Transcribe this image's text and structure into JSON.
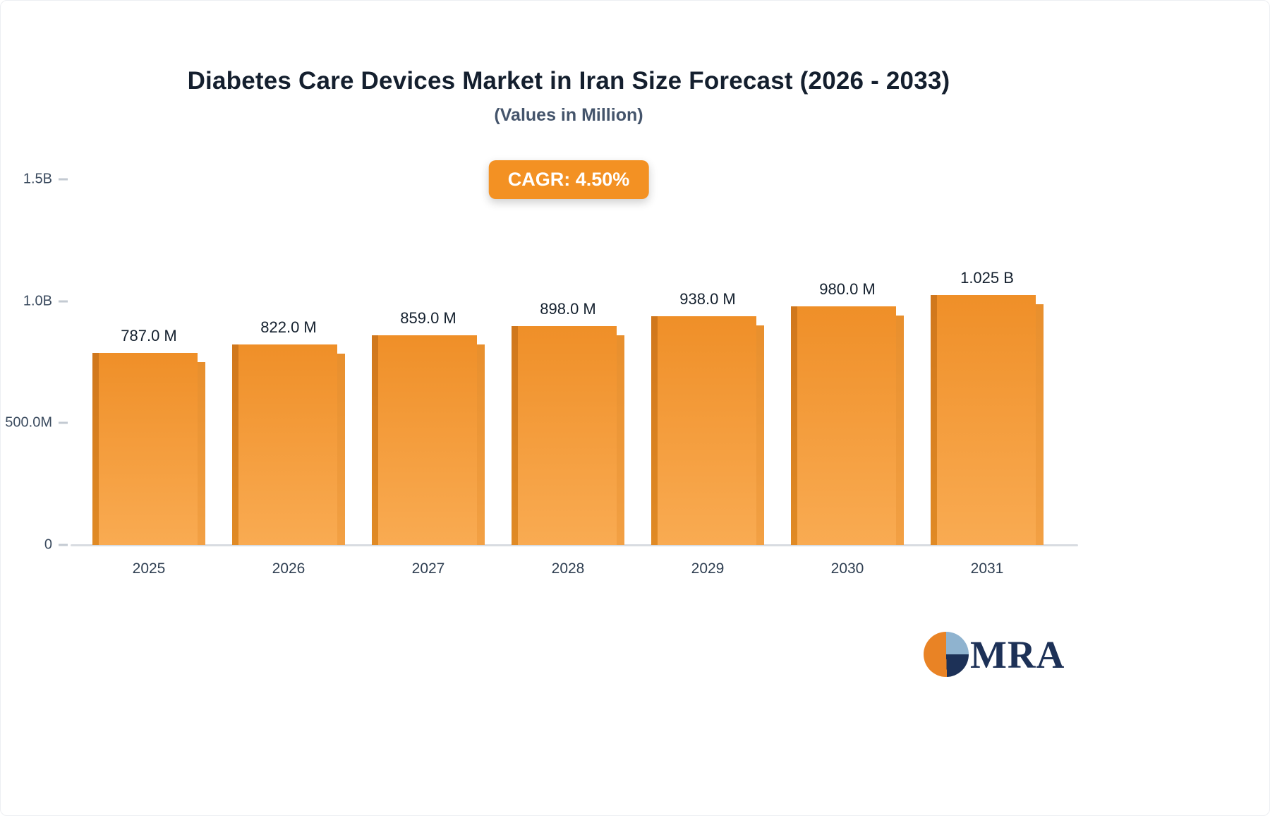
{
  "title": "Diabetes Care Devices Market in Iran Size Forecast (2026 - 2033)",
  "subtitle": "(Values in Million)",
  "cagr_label": "CAGR: 4.50%",
  "logo_text": "MRA",
  "colors": {
    "badge": "#f39123",
    "bar_top": "#ef8f28",
    "bar_bottom": "#f9ab52",
    "title": "#141f2e"
  },
  "chart_data": {
    "type": "bar",
    "title": "Diabetes Care Devices Market in Iran Size Forecast (2026 - 2033)",
    "subtitle": "(Values in Million)",
    "cagr": "4.50%",
    "categories": [
      "2025",
      "2026",
      "2027",
      "2028",
      "2029",
      "2030",
      "2031"
    ],
    "values": [
      787,
      822,
      859,
      898,
      938,
      980,
      1025
    ],
    "labels": [
      "787.0 M",
      "822.0 M",
      "859.0 M",
      "898.0 M",
      "938.0 M",
      "980.0 M",
      "1.025 B"
    ],
    "unit_label": "Million",
    "xlabel": "",
    "ylabel": "",
    "ylim": [
      0,
      1500
    ],
    "grid": false,
    "legend": false,
    "yticks": [
      {
        "value": 0,
        "label": "0"
      },
      {
        "value": 500,
        "label": "500.0M"
      },
      {
        "value": 1000,
        "label": "1.0B"
      },
      {
        "value": 1500,
        "label": "1.5B"
      }
    ],
    "bar_color": "#f39123"
  }
}
